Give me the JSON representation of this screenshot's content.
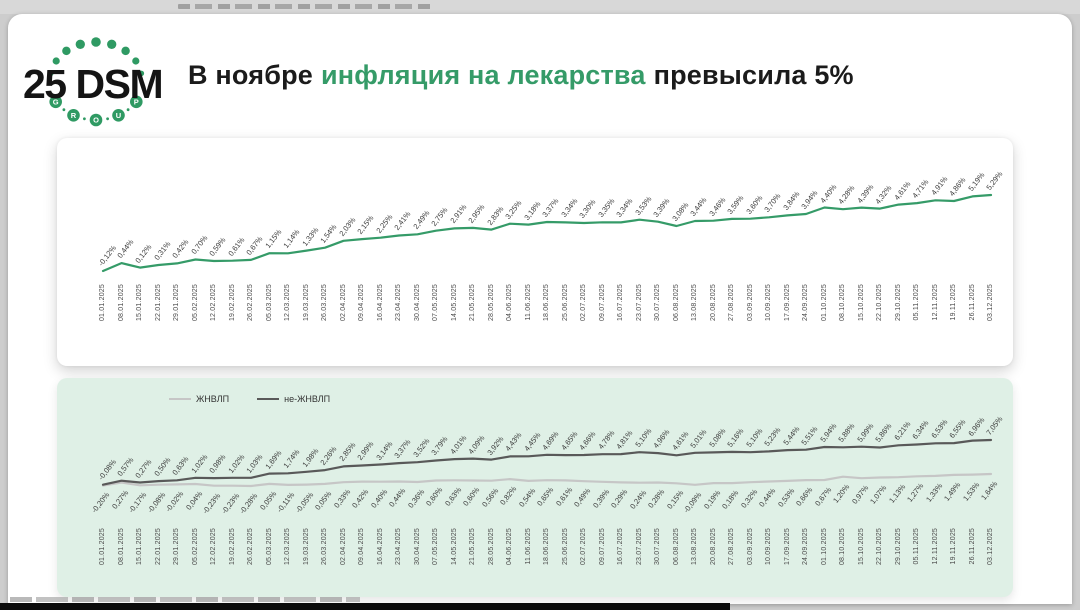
{
  "page": {
    "background": "#cdcdcd",
    "slide_background": "#ffffff"
  },
  "logo": {
    "text": "25 DSM",
    "group_letters": [
      "G",
      "R",
      "O",
      "U",
      "P"
    ],
    "color": "#2f9a63",
    "text_color": "#141414"
  },
  "header": {
    "title_part1": "В ноябре",
    "title_accent": "инфляция на лекарства",
    "title_part2": "превысила 5%",
    "accent_color": "#359B68"
  },
  "legend": {
    "items": [
      {
        "label": "ЖНВЛП",
        "color": "#c6c6c6"
      },
      {
        "label": "не-ЖНВЛП",
        "color": "#595959"
      }
    ]
  },
  "chart_data": [
    {
      "type": "line",
      "title": "",
      "label_format": "0,00%",
      "grid": false,
      "legend_position": "none",
      "ylim": [
        -0.5,
        5.5
      ],
      "x": [
        "01.01.2025",
        "08.01.2025",
        "15.01.2025",
        "22.01.2025",
        "29.01.2025",
        "05.02.2025",
        "12.02.2025",
        "19.02.2025",
        "26.02.2025",
        "05.03.2025",
        "12.03.2025",
        "19.03.2025",
        "26.03.2025",
        "02.04.2025",
        "09.04.2025",
        "16.04.2025",
        "23.04.2025",
        "30.04.2025",
        "07.05.2025",
        "14.05.2025",
        "21.05.2025",
        "28.05.2025",
        "04.06.2025",
        "11.06.2025",
        "18.06.2025",
        "25.06.2025",
        "02.07.2025",
        "09.07.2025",
        "16.07.2025",
        "23.07.2025",
        "30.07.2025",
        "06.08.2025",
        "13.08.2025",
        "20.08.2025",
        "27.08.2025",
        "03.09.2025",
        "10.09.2025",
        "17.09.2025",
        "24.09.2025",
        "01.10.2025",
        "08.10.2025",
        "15.10.2025",
        "22.10.2025",
        "29.10.2025",
        "05.11.2025",
        "12.11.2025",
        "19.11.2025",
        "26.11.2025",
        "03.12.2025"
      ],
      "series": [
        {
          "name": "total",
          "color": "#359B68",
          "labels_position": "above",
          "values": [
            -0.12,
            0.44,
            0.12,
            0.31,
            0.42,
            0.7,
            0.59,
            0.61,
            0.67,
            1.15,
            1.14,
            1.33,
            1.54,
            2.03,
            2.15,
            2.25,
            2.41,
            2.49,
            2.75,
            2.91,
            2.95,
            2.83,
            3.25,
            3.18,
            3.37,
            3.34,
            3.3,
            3.35,
            3.34,
            3.53,
            3.39,
            3.08,
            3.44,
            3.46,
            3.59,
            3.6,
            3.7,
            3.84,
            3.94,
            4.4,
            4.28,
            4.39,
            4.32,
            4.61,
            4.71,
            4.91,
            4.86,
            5.19,
            5.29
          ]
        }
      ]
    },
    {
      "type": "line",
      "title": "",
      "label_format": "0,00%",
      "grid": false,
      "legend_position": "top-left",
      "ylim": [
        -0.5,
        7.5
      ],
      "x": [
        "01.01.2025",
        "08.01.2025",
        "15.01.2025",
        "22.01.2025",
        "29.01.2025",
        "05.02.2025",
        "12.02.2025",
        "19.02.2025",
        "26.02.2025",
        "05.03.2025",
        "12.03.2025",
        "19.03.2025",
        "26.03.2025",
        "02.04.2025",
        "09.04.2025",
        "16.04.2025",
        "23.04.2025",
        "30.04.2025",
        "07.05.2025",
        "14.05.2025",
        "21.05.2025",
        "28.05.2025",
        "04.06.2025",
        "11.06.2025",
        "18.06.2025",
        "25.06.2025",
        "02.07.2025",
        "09.07.2025",
        "16.07.2025",
        "23.07.2025",
        "30.07.2025",
        "06.08.2025",
        "13.08.2025",
        "20.08.2025",
        "27.08.2025",
        "03.09.2025",
        "10.09.2025",
        "17.09.2025",
        "24.09.2025",
        "01.10.2025",
        "08.10.2025",
        "15.10.2025",
        "22.10.2025",
        "29.10.2025",
        "05.11.2025",
        "12.11.2025",
        "19.11.2025",
        "26.11.2025",
        "03.12.2025"
      ],
      "series": [
        {
          "name": "ЖНВЛП",
          "color": "#c6c6c6",
          "labels_position": "below",
          "values": [
            -0.2,
            0.27,
            -0.17,
            -0.08,
            -0.02,
            0.04,
            -0.23,
            -0.23,
            -0.28,
            0.05,
            -0.11,
            -0.05,
            0.05,
            0.33,
            0.42,
            0.4,
            0.44,
            0.36,
            0.6,
            0.63,
            0.6,
            0.56,
            0.82,
            0.54,
            0.65,
            0.61,
            0.49,
            0.39,
            0.29,
            0.24,
            0.28,
            0.15,
            -0.09,
            0.19,
            0.18,
            0.32,
            0.44,
            0.53,
            0.66,
            0.67,
            1.2,
            0.97,
            1.07,
            1.13,
            1.27,
            1.33,
            1.49,
            1.53,
            1.64
          ]
        },
        {
          "name": "не-ЖНВЛП",
          "color": "#595959",
          "labels_position": "above",
          "values": [
            -0.08,
            0.57,
            0.27,
            0.5,
            0.63,
            1.02,
            0.98,
            1.02,
            1.03,
            1.69,
            1.74,
            1.98,
            2.26,
            2.85,
            2.99,
            3.14,
            3.37,
            3.52,
            3.79,
            4.01,
            4.09,
            3.92,
            4.43,
            4.45,
            4.69,
            4.65,
            4.66,
            4.78,
            4.81,
            5.1,
            4.96,
            4.61,
            5.01,
            5.08,
            5.16,
            5.1,
            5.23,
            5.44,
            5.51,
            5.94,
            5.88,
            5.99,
            5.86,
            6.21,
            6.34,
            6.53,
            6.55,
            6.96,
            7.05
          ]
        }
      ]
    }
  ]
}
